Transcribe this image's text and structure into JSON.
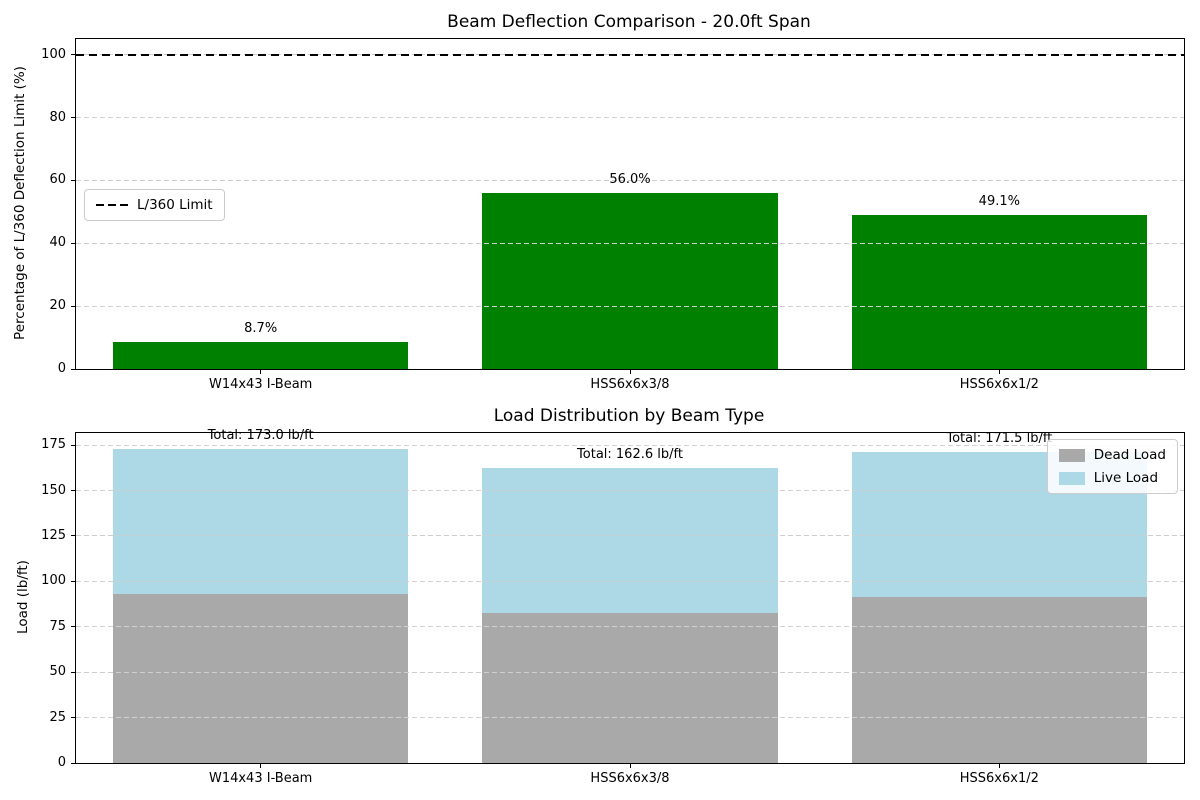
{
  "figure": {
    "background": "#ffffff"
  },
  "chart_data": [
    {
      "type": "bar",
      "title": "Beam Deflection Comparison - 20.0ft Span",
      "categories": [
        "W14x43 I-Beam",
        "HSS6x6x3/8",
        "HSS6x6x1/2"
      ],
      "values": [
        8.7,
        56.0,
        49.1
      ],
      "bar_labels": [
        "8.7%",
        "56.0%",
        "49.1%"
      ],
      "bar_color": "#008000",
      "ylabel": "Percentage of L/360 Deflection Limit (%)",
      "ylim": [
        0,
        105
      ],
      "yticks": [
        0,
        20,
        40,
        60,
        80,
        100
      ],
      "grid": true,
      "grid_color": "#cfcfcf",
      "ref_line": {
        "value": 100,
        "color": "#000000",
        "style": "dashed",
        "label": "L/360 Limit"
      },
      "legend": {
        "position": "center-left",
        "entries": [
          {
            "label": "L/360 Limit",
            "marker": "dashed-line",
            "color": "#000000"
          }
        ]
      }
    },
    {
      "type": "stacked-bar",
      "title": "Load Distribution by Beam Type",
      "categories": [
        "W14x43 I-Beam",
        "HSS6x6x3/8",
        "HSS6x6x1/2"
      ],
      "series": [
        {
          "name": "Dead Load",
          "color": "#a9a9a9",
          "values": [
            93.0,
            82.6,
            91.5
          ]
        },
        {
          "name": "Live Load",
          "color": "#add8e6",
          "values": [
            80.0,
            80.0,
            80.0
          ]
        }
      ],
      "totals": [
        173.0,
        162.6,
        171.5
      ],
      "bar_labels": [
        "Total: 173.0 lb/ft",
        "Total: 162.6 lb/ft",
        "Total: 171.5 lb/ft"
      ],
      "ylabel": "Load (lb/ft)",
      "ylim": [
        0,
        181.7
      ],
      "yticks": [
        0,
        25,
        50,
        75,
        100,
        125,
        150,
        175
      ],
      "grid": true,
      "grid_color": "#cfcfcf",
      "legend": {
        "position": "upper-right",
        "entries": [
          {
            "label": "Dead Load",
            "marker": "rect",
            "color": "#a9a9a9"
          },
          {
            "label": "Live Load",
            "marker": "rect",
            "color": "#add8e6"
          }
        ]
      }
    }
  ]
}
